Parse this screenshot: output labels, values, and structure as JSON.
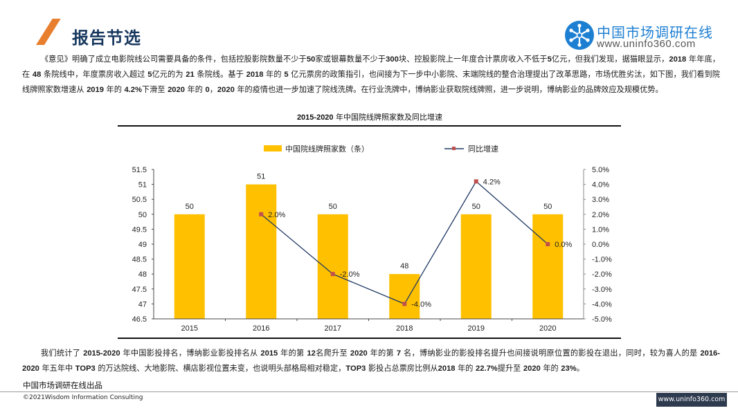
{
  "header": {
    "title": "报告节选",
    "logo_name_cn": "中国市场调研在线",
    "logo_url": "www.uninfo360.com",
    "accent_color": "#e87f2e",
    "title_color": "#17375e",
    "logo_color": "#1d7fd2"
  },
  "paragraph1": {
    "segments": [
      {
        "t": "《意见》明确了成立电影院线公司需要具备的条件，包括控股影院数量不少于"
      },
      {
        "t": "50",
        "b": true
      },
      {
        "t": "家或银幕数量不少于"
      },
      {
        "t": "300",
        "b": true
      },
      {
        "t": "块、控股影院上一年度合计票房收入不低于"
      },
      {
        "t": "5",
        "b": true
      },
      {
        "t": "亿元，但我们发现，据猫眼显示，"
      },
      {
        "t": "2018",
        "b": true
      },
      {
        "t": " 年年底，在 "
      },
      {
        "t": "48",
        "b": true
      },
      {
        "t": " 条院线中，年度票房收入超过 "
      },
      {
        "t": "5",
        "b": true
      },
      {
        "t": "亿元的为 "
      },
      {
        "t": "21",
        "b": true
      },
      {
        "t": " 条院线。基于 "
      },
      {
        "t": "2018",
        "b": true
      },
      {
        "t": " 年的 "
      },
      {
        "t": "5",
        "b": true
      },
      {
        "t": " 亿元票房的政策指引，也间接为下一步中小影院、末端院线的整合治理提出了改革思路，市场优胜劣汰，如下图，我们看到院线牌照家数增速从 "
      },
      {
        "t": "2019",
        "b": true
      },
      {
        "t": " 年的 "
      },
      {
        "t": "4.2%",
        "b": true
      },
      {
        "t": "下滑至 "
      },
      {
        "t": "2020",
        "b": true
      },
      {
        "t": " 年的 "
      },
      {
        "t": "0",
        "b": true
      },
      {
        "t": "，"
      },
      {
        "t": "2020",
        "b": true
      },
      {
        "t": " 年的疫情也进一步加速了院线洗牌。在行业洗牌中，博纳影业获取院线牌照，进一步说明，博纳影业的品牌效应及规模优势。"
      }
    ]
  },
  "chart_title": {
    "bold": "2015-2020",
    "rest": " 年中国院线牌照家数及同比增速"
  },
  "chart_data": {
    "type": "bar",
    "title": "2015-2020 年中国院线牌照家数及同比增速",
    "categories": [
      "2015",
      "2016",
      "2017",
      "2018",
      "2019",
      "2020"
    ],
    "series": [
      {
        "name": "中国院线牌照家数（条）",
        "type": "bar",
        "axis": "left",
        "color": "#ffc000",
        "values": [
          50,
          51,
          50,
          48,
          50,
          50
        ],
        "labels": [
          "50",
          "51",
          "50",
          "48",
          "50",
          "50"
        ]
      },
      {
        "name": "同比增速",
        "type": "line",
        "axis": "right",
        "line_color": "#1f3864",
        "marker_color": "#c0504d",
        "values": [
          null,
          2.0,
          -2.0,
          -4.0,
          4.2,
          0.0
        ],
        "labels": [
          "",
          "2.0%",
          "-2.0%",
          "-4.0%",
          "4.2%",
          "0.0%"
        ]
      }
    ],
    "y_left": {
      "min": 46.5,
      "max": 51.5,
      "step": 0.5,
      "ticks": [
        "51.5",
        "51",
        "50.5",
        "50",
        "49.5",
        "49",
        "48.5",
        "48",
        "47.5",
        "47",
        "46.5"
      ]
    },
    "y_right": {
      "min": -5.0,
      "max": 5.0,
      "step": 1.0,
      "ticks": [
        "5.0%",
        "4.0%",
        "3.0%",
        "2.0%",
        "1.0%",
        "0.0%",
        "-1.0%",
        "-2.0%",
        "-3.0%",
        "-4.0%",
        "-5.0%"
      ]
    },
    "xlabel": "",
    "ylabel": "",
    "grid": false,
    "legend_position": "top"
  },
  "paragraph2": {
    "segments": [
      {
        "t": "我们统计了 "
      },
      {
        "t": "2015-2020",
        "b": true
      },
      {
        "t": " 年中国影投排名，博纳影业影投排名从 "
      },
      {
        "t": "2015",
        "b": true
      },
      {
        "t": " 年的第 "
      },
      {
        "t": "12",
        "b": true
      },
      {
        "t": "名爬升至 "
      },
      {
        "t": "2020",
        "b": true
      },
      {
        "t": " 年的第 "
      },
      {
        "t": "7",
        "b": true
      },
      {
        "t": " 名，博纳影业的影投排名提升也间接说明原位置的影投在退出，同时，较为喜人的是 "
      },
      {
        "t": "2016-2020",
        "b": true
      },
      {
        "t": " 年五年中 "
      },
      {
        "t": "TOP3",
        "b": true
      },
      {
        "t": " 的万达院线、大地影院、横店影视位置未变，也说明头部格局相对稳定，"
      },
      {
        "t": "TOP3",
        "b": true
      },
      {
        "t": " 影投占总票房比例从"
      },
      {
        "t": "2018",
        "b": true
      },
      {
        "t": " 年的 "
      },
      {
        "t": "22.7%",
        "b": true
      },
      {
        "t": "提升至 "
      },
      {
        "t": "2020",
        "b": true
      },
      {
        "t": " 年的 "
      },
      {
        "t": "23%",
        "b": true
      },
      {
        "t": "。"
      }
    ]
  },
  "footer": {
    "brand": "中国市场调研在线出品",
    "copyright": "©2021Wisdom Information Consulting",
    "url_badge": "www.uninfo360.com",
    "badge_color": "#2e3a4e"
  }
}
